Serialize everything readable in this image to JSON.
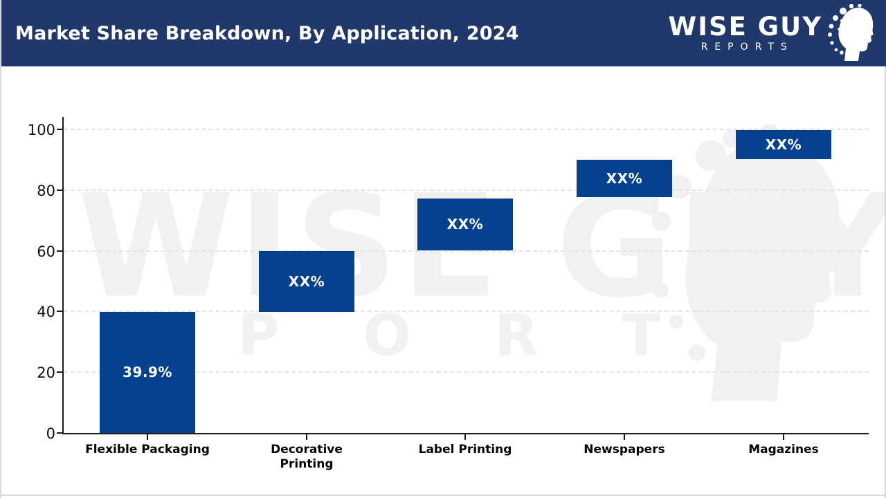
{
  "header": {
    "title": "Market Share Breakdown, By Application, 2024",
    "bg_color": "#21386a",
    "logo": {
      "line1": "WISE GUY",
      "line2": "REPORTS"
    }
  },
  "watermark": {
    "line1": "WISE GUY",
    "line2": "REPORTS"
  },
  "chart_data": {
    "type": "bar",
    "subtype": "waterfall",
    "title": "Market Share Breakdown, By Application, 2024",
    "categories": [
      "Flexible Packaging",
      "Decorative Printing",
      "Label Printing",
      "Newspapers",
      "Magazines"
    ],
    "segments": [
      {
        "category": "Flexible Packaging",
        "start": 0,
        "end": 39.9,
        "label": "39.9%"
      },
      {
        "category": "Decorative Printing",
        "start": 39.9,
        "end": 59.9,
        "label": "XX%"
      },
      {
        "category": "Label Printing",
        "start": 60.2,
        "end": 77.2,
        "label": "XX%"
      },
      {
        "category": "Newspapers",
        "start": 77.6,
        "end": 89.9,
        "label": "XX%"
      },
      {
        "category": "Magazines",
        "start": 90.2,
        "end": 99.8,
        "label": "XX%"
      }
    ],
    "xlabel": "",
    "ylabel": "",
    "ylim": [
      0,
      100
    ],
    "yticks": [
      0,
      20,
      40,
      60,
      80,
      100
    ],
    "grid": true,
    "grid_style": "dashed",
    "legend": "none",
    "bar_color": "#05418f",
    "bar_label_color": "#ffffff"
  }
}
